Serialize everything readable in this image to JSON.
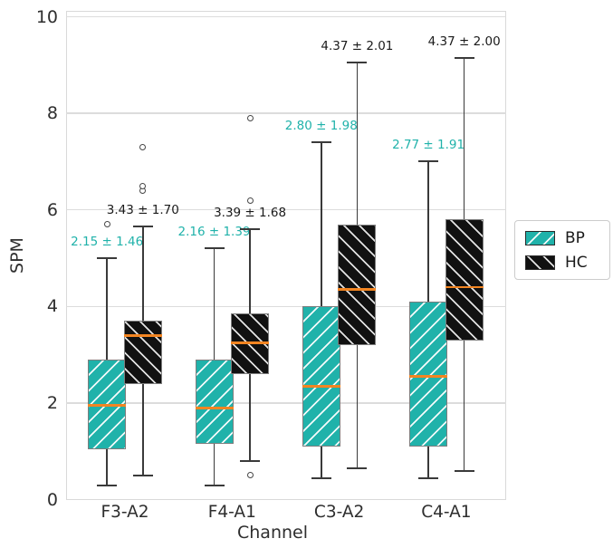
{
  "figure": {
    "ylabel": "SPM",
    "xlabel": "Channel",
    "yticks": [
      0,
      2,
      4,
      6,
      8,
      10
    ],
    "background": "#ffffff",
    "grid_color": "#dcdcdc"
  },
  "legend": {
    "items": [
      {
        "label": "BP",
        "color": "#20b2aa",
        "hatch": "/"
      },
      {
        "label": "HC",
        "color": "#111111",
        "hatch": "\\"
      }
    ]
  },
  "chart_data": {
    "type": "boxplot",
    "title": "",
    "xlabel": "Channel",
    "ylabel": "SPM",
    "ylim": [
      0,
      10.12
    ],
    "grid": true,
    "legend_position": "center right",
    "categories": [
      "F3-A2",
      "F4-A1",
      "C3-A2",
      "C4-A1"
    ],
    "median_color": "#f28522",
    "series": [
      {
        "name": "BP",
        "color": "#20b2aa",
        "hatch": "/",
        "boxes": [
          {
            "annotation": "2.15 ± 1.46",
            "whislo": 0.3,
            "q1": 1.05,
            "med": 1.95,
            "q3": 2.9,
            "whishi": 5.0,
            "fliers": [
              5.7
            ]
          },
          {
            "annotation": "2.16 ± 1.39",
            "whislo": 0.3,
            "q1": 1.15,
            "med": 1.9,
            "q3": 2.9,
            "whishi": 5.2,
            "fliers": []
          },
          {
            "annotation": "2.80 ± 1.98",
            "whislo": 0.45,
            "q1": 1.1,
            "med": 2.35,
            "q3": 4.0,
            "whishi": 7.4,
            "fliers": []
          },
          {
            "annotation": "2.77 ± 1.91",
            "whislo": 0.45,
            "q1": 1.1,
            "med": 2.55,
            "q3": 4.1,
            "whishi": 7.0,
            "fliers": []
          }
        ]
      },
      {
        "name": "HC",
        "color": "#111111",
        "hatch": "\\",
        "boxes": [
          {
            "annotation": "3.43 ± 1.70",
            "whislo": 0.5,
            "q1": 2.4,
            "med": 3.4,
            "q3": 3.7,
            "whishi": 5.65,
            "fliers": [
              6.4,
              6.5,
              7.3
            ]
          },
          {
            "annotation": "3.39 ± 1.68",
            "whislo": 0.8,
            "q1": 2.6,
            "med": 3.25,
            "q3": 3.85,
            "whishi": 5.6,
            "fliers": [
              0.5,
              6.2,
              7.9
            ]
          },
          {
            "annotation": "4.37 ± 2.01",
            "whislo": 0.65,
            "q1": 3.2,
            "med": 4.35,
            "q3": 5.7,
            "whishi": 9.05,
            "fliers": []
          },
          {
            "annotation": "4.37 ± 2.00",
            "whislo": 0.6,
            "q1": 3.3,
            "med": 4.4,
            "q3": 5.8,
            "whishi": 9.15,
            "fliers": []
          }
        ]
      }
    ]
  }
}
